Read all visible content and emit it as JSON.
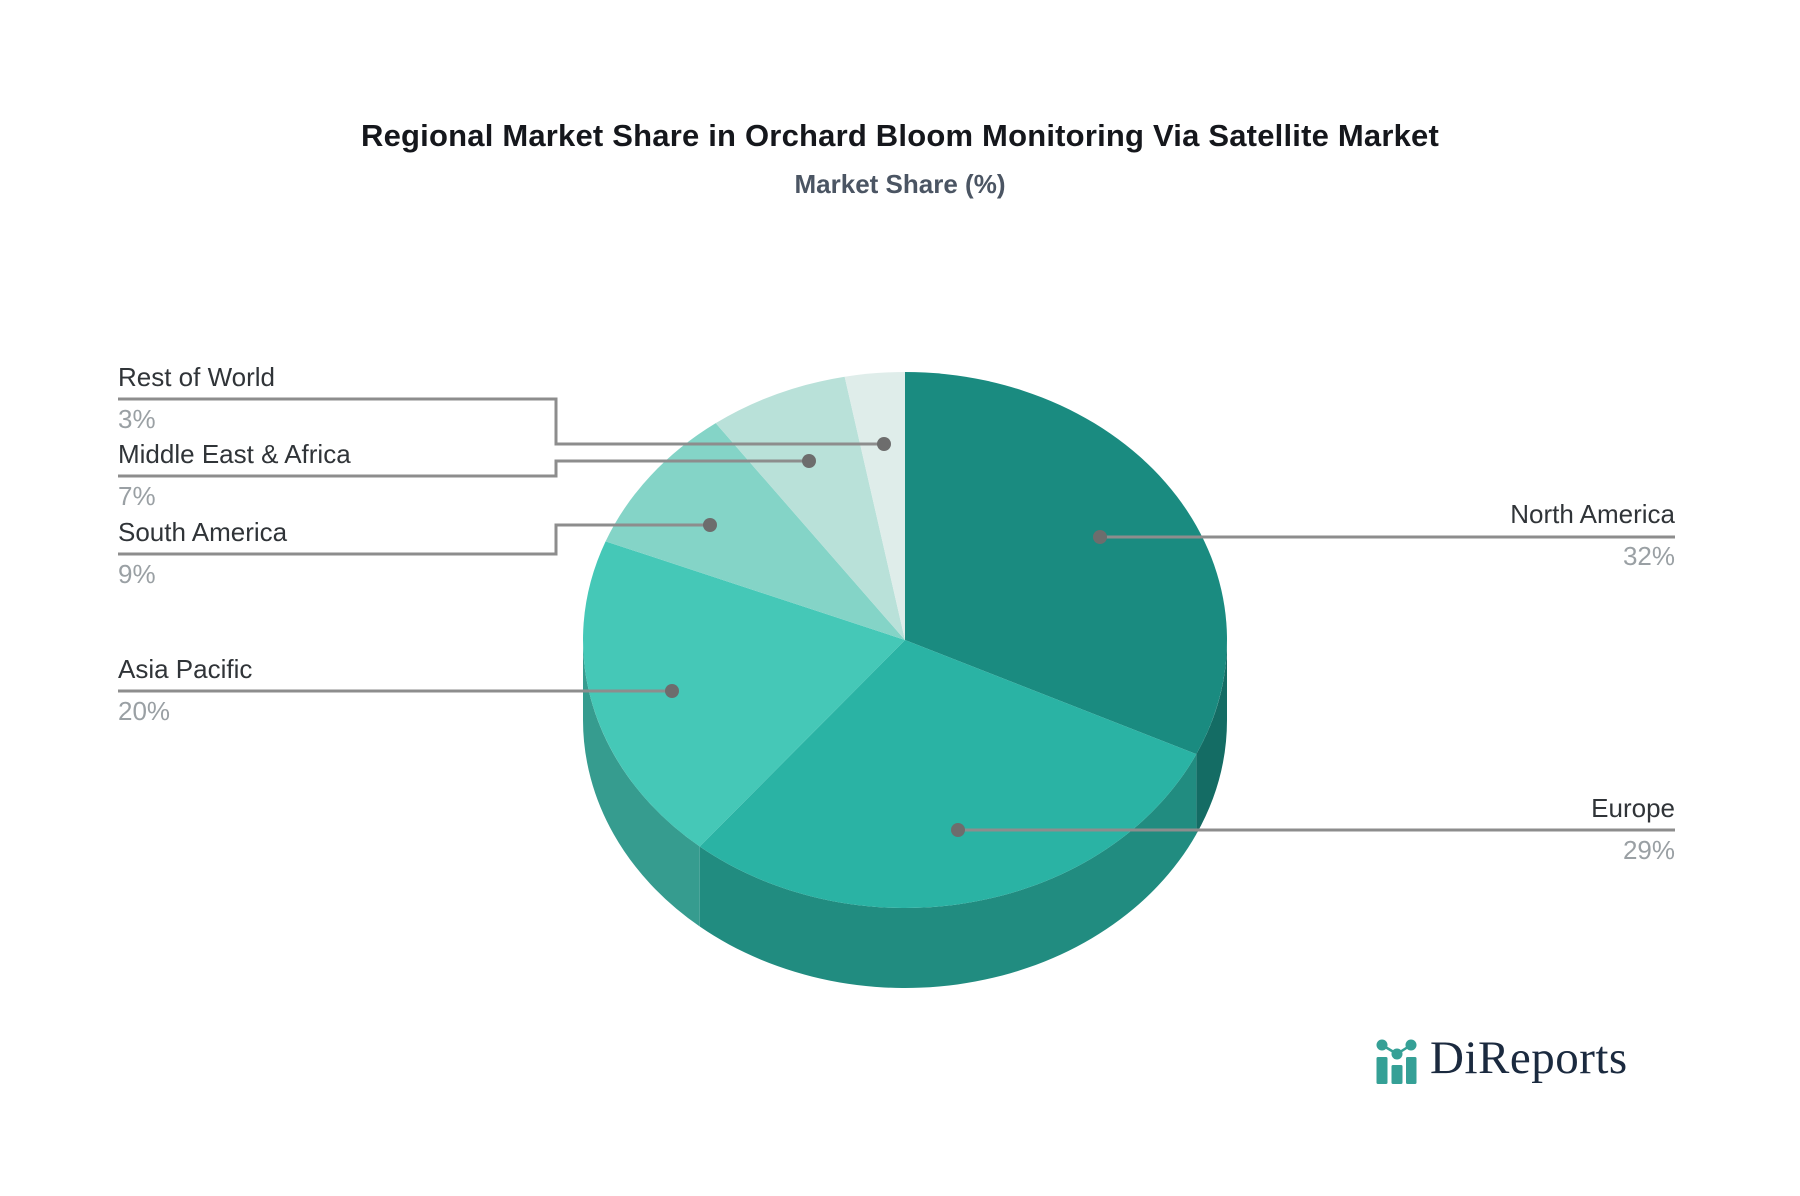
{
  "chart_data": {
    "type": "pie",
    "title": "Regional Market Share in Orchard Bloom Monitoring Via Satellite Market",
    "subtitle": "Market Share (%)",
    "unit": "%",
    "style": "3d-pie",
    "direction": "clockwise",
    "start_angle_deg": 0,
    "legend_position": "callout-labels",
    "series": [
      {
        "name": "North America",
        "value": 32,
        "pct": "32%",
        "color": "#1a8b80",
        "label_side": "right"
      },
      {
        "name": "Europe",
        "value": 29,
        "pct": "29%",
        "color": "#2ab3a4",
        "label_side": "right"
      },
      {
        "name": "Asia Pacific",
        "value": 20,
        "pct": "20%",
        "color": "#45c8b7",
        "label_side": "left"
      },
      {
        "name": "South America",
        "value": 9,
        "pct": "9%",
        "color": "#84d4c7",
        "label_side": "left"
      },
      {
        "name": "Middle East & Africa",
        "value": 7,
        "pct": "7%",
        "color": "#b9e1d9",
        "label_side": "left"
      },
      {
        "name": "Rest of World",
        "value": 3,
        "pct": "3%",
        "color": "#dfedea",
        "label_side": "left"
      }
    ]
  },
  "logo": {
    "text": "DiReports",
    "icon": "bar-line-chart-icon",
    "icon_color": "#35a096",
    "text_color": "#1b2a3f"
  },
  "colors": {
    "background": "#ffffff",
    "title_text": "#15171c",
    "subtitle_text": "#4b5563",
    "label_text": "#303438",
    "pct_text": "#9aa0a4",
    "connector_line": "#8d8d8d",
    "connector_dot": "#6d6d6d"
  }
}
